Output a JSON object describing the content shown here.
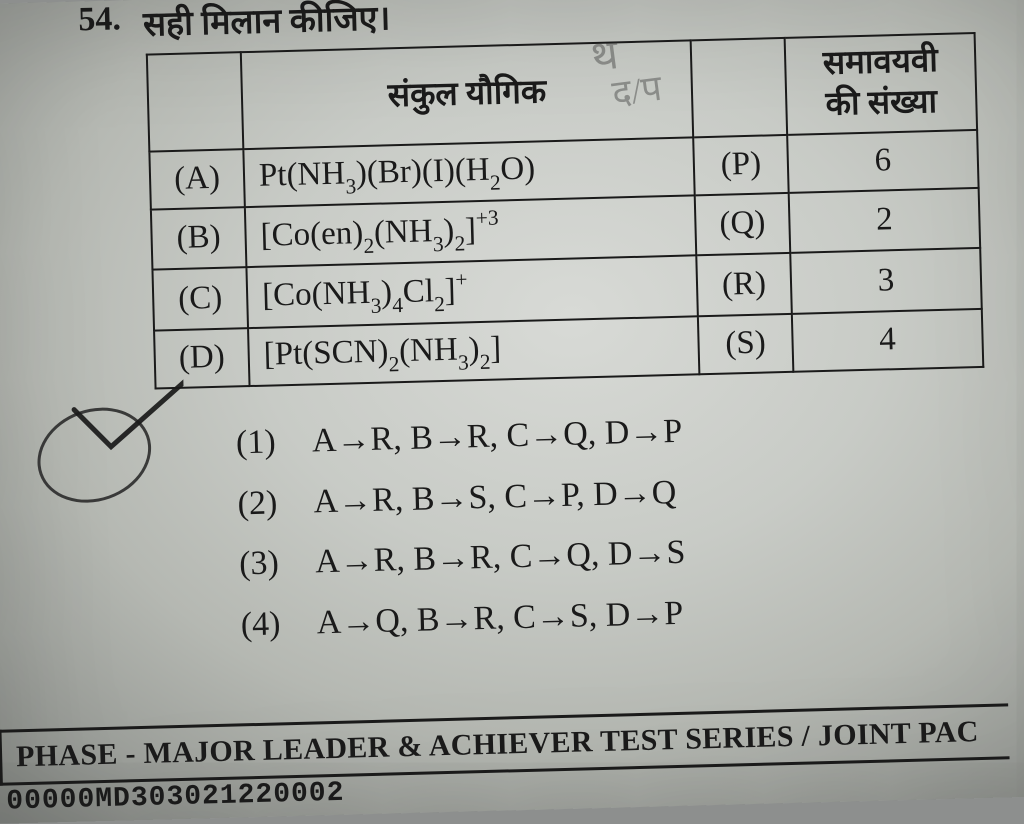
{
  "question": {
    "number": "54.",
    "prompt_hi": "सही मिलान कीजिए।"
  },
  "table": {
    "headers": {
      "compound_hi": "संकुल यौगिक",
      "isomer_count_hi": "समावयवी\nकी संख्या"
    },
    "rows": [
      {
        "label": "(A)",
        "compound_html": "Pt(NH<span class='sub'>3</span>)(Br)(I)(H<span class='sub'>2</span>O)",
        "p": "(P)",
        "count": "6"
      },
      {
        "label": "(B)",
        "compound_html": "[Co(en)<span class='sub'>2</span>(NH<span class='sub'>3</span>)<span class='sub'>2</span>]<span class='sup'>+3</span>",
        "p": "(Q)",
        "count": "2"
      },
      {
        "label": "(C)",
        "compound_html": "[Co(NH<span class='sub'>3</span>)<span class='sub'>4</span>Cl<span class='sub'>2</span>]<span class='sup'>+</span>",
        "p": "(R)",
        "count": "3"
      },
      {
        "label": "(D)",
        "compound_html": "[Pt(SCN)<span class='sub'>2</span>(NH<span class='sub'>3</span>)<span class='sub'>2</span>]",
        "p": "(S)",
        "count": "4"
      }
    ]
  },
  "options": [
    {
      "n": "(1)",
      "text": "A→R, B→R, C→Q, D→P"
    },
    {
      "n": "(2)",
      "text": "A→R, B→S, C→P, D→Q"
    },
    {
      "n": "(3)",
      "text": "A→R, B→R, C→Q, D→S"
    },
    {
      "n": "(4)",
      "text": "A→Q, B→R, C→S, D→P"
    }
  ],
  "footer": {
    "series": "PHASE - MAJOR LEADER & ACHIEVER TEST SERIES / JOINT PAC",
    "serial": "00000MD303021220002"
  },
  "colors": {
    "ink": "#1a1a1a",
    "paper_light": "#d8dad6",
    "paper_dark": "#7e817d"
  }
}
